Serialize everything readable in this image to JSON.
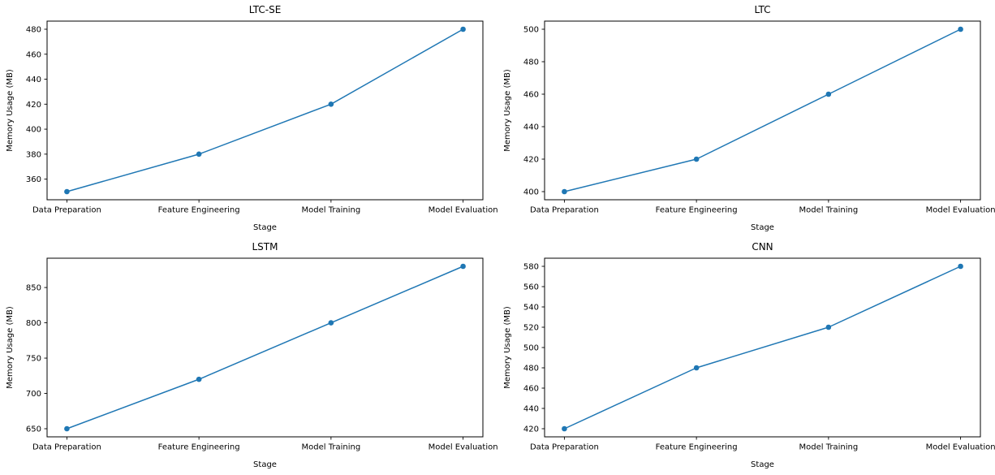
{
  "figure": {
    "background": "#ffffff",
    "line_color": "#1f77b4",
    "axis_color": "#000000",
    "marker": "circle",
    "legend": "none",
    "grid": false
  },
  "chart_data": [
    {
      "type": "line",
      "title": "LTC-SE",
      "xlabel": "Stage",
      "ylabel": "Memory Usage (MB)",
      "categories": [
        "Data Preparation",
        "Feature Engineering",
        "Model Training",
        "Model Evaluation"
      ],
      "values": [
        350,
        380,
        420,
        480
      ],
      "yticks": [
        360,
        380,
        400,
        420,
        440,
        460,
        480
      ],
      "ylim": [
        343.5,
        486.5
      ],
      "grid": false,
      "legend_position": "none"
    },
    {
      "type": "line",
      "title": "LTC",
      "xlabel": "Stage",
      "ylabel": "Memory Usage (MB)",
      "categories": [
        "Data Preparation",
        "Feature Engineering",
        "Model Training",
        "Model Evaluation"
      ],
      "values": [
        400,
        420,
        460,
        500
      ],
      "yticks": [
        400,
        420,
        440,
        460,
        480,
        500
      ],
      "ylim": [
        395,
        505
      ],
      "grid": false,
      "legend_position": "none"
    },
    {
      "type": "line",
      "title": "LSTM",
      "xlabel": "Stage",
      "ylabel": "Memory Usage (MB)",
      "categories": [
        "Data Preparation",
        "Feature Engineering",
        "Model Training",
        "Model Evaluation"
      ],
      "values": [
        650,
        720,
        800,
        880
      ],
      "yticks": [
        650,
        700,
        750,
        800,
        850
      ],
      "ylim": [
        638.5,
        891.5
      ],
      "grid": false,
      "legend_position": "none"
    },
    {
      "type": "line",
      "title": "CNN",
      "xlabel": "Stage",
      "ylabel": "Memory Usage (MB)",
      "categories": [
        "Data Preparation",
        "Feature Engineering",
        "Model Training",
        "Model Evaluation"
      ],
      "values": [
        420,
        480,
        520,
        580
      ],
      "yticks": [
        420,
        440,
        460,
        480,
        500,
        520,
        540,
        560,
        580
      ],
      "ylim": [
        412,
        588
      ],
      "grid": false,
      "legend_position": "none"
    }
  ]
}
